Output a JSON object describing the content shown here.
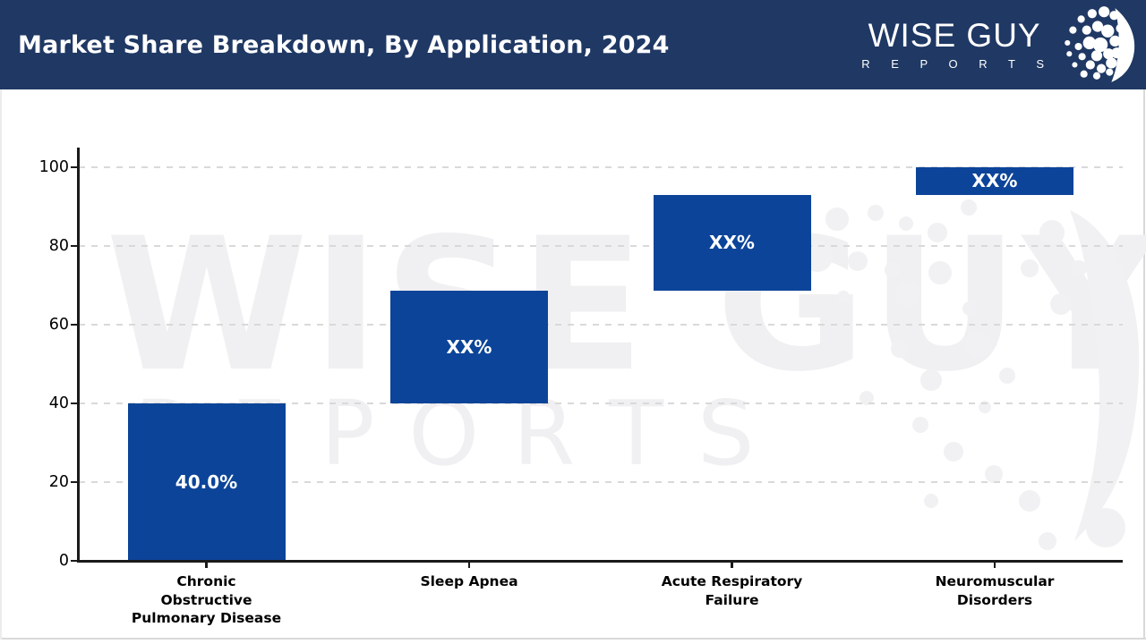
{
  "header": {
    "title": "Market Share Breakdown, By Application, 2024",
    "logo": {
      "name": "WISE GUY",
      "sub": "R E P O R T S"
    }
  },
  "watermark": {
    "line1": "WISE GUY",
    "line2": "R E P O R T S"
  },
  "colors": {
    "header_bg": "#1f3864",
    "bar": "#0c4499",
    "grid": "#d9d9d9",
    "axis": "#1a1a1a",
    "bar_label": "#ffffff",
    "watermark": "#f0f0f2"
  },
  "chart_data": {
    "type": "bar",
    "subtype": "stacked-waterfall",
    "title": "Market Share Breakdown, By Application, 2024",
    "categories": [
      "Chronic Obstructive Pulmonary Disease",
      "Sleep Apnea",
      "Acute Respiratory Failure",
      "Neuromuscular Disorders"
    ],
    "category_lines": [
      [
        "Chronic",
        "Obstructive",
        "Pulmonary Disease"
      ],
      [
        "Sleep Apnea"
      ],
      [
        "Acute Respiratory",
        "Failure"
      ],
      [
        "Neuromuscular",
        "Disorders"
      ]
    ],
    "bars": [
      {
        "category": "Chronic Obstructive Pulmonary Disease",
        "label": "40.0%",
        "start": 0,
        "end": 40,
        "value": 40.0
      },
      {
        "category": "Sleep Apnea",
        "label": "XX%",
        "start": 40,
        "end": 68.5,
        "value_est": 28.5
      },
      {
        "category": "Acute Respiratory Failure",
        "label": "XX%",
        "start": 68.5,
        "end": 93,
        "value_est": 24.5
      },
      {
        "category": "Neuromuscular Disorders",
        "label": "XX%",
        "start": 93,
        "end": 100,
        "value_est": 7.0
      }
    ],
    "xlabel": "",
    "ylabel": "",
    "ylim": [
      0,
      100
    ],
    "yticks": [
      0,
      20,
      40,
      60,
      80,
      100
    ],
    "grid": "horizontal-dashed",
    "legend": null
  }
}
